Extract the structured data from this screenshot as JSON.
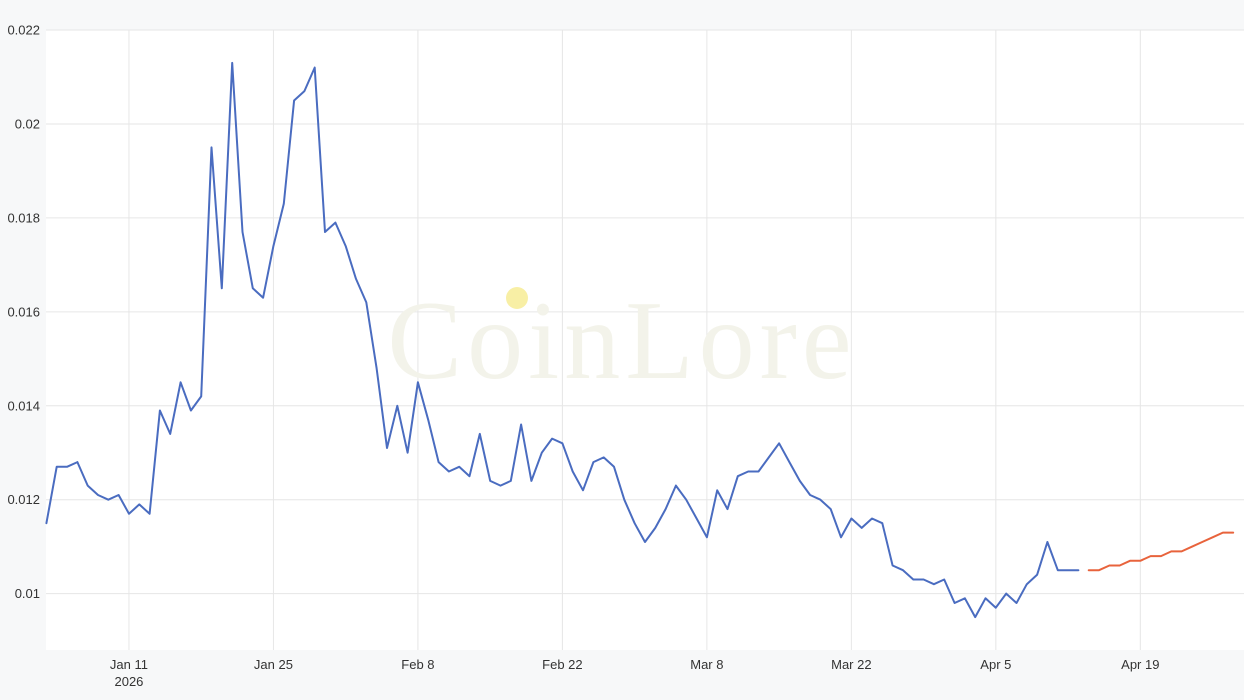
{
  "page": {
    "background_color": "#f7f8f9",
    "plot_background_color": "#ffffff",
    "axis_label_color": "#333333"
  },
  "watermark": {
    "text": "CoinLore",
    "dot_color": "#f8efa5"
  },
  "chart_data": {
    "type": "line",
    "grid": true,
    "grid_color": "#e6e6e6",
    "legend": "none",
    "x_axis": {
      "start_date": "2026-01-03",
      "tick_labels": [
        {
          "label": "Jan 11",
          "sublabel": "2026",
          "day_index": 8
        },
        {
          "label": "Jan 25",
          "sublabel": "",
          "day_index": 22
        },
        {
          "label": "Feb 8",
          "sublabel": "",
          "day_index": 36
        },
        {
          "label": "Feb 22",
          "sublabel": "",
          "day_index": 50
        },
        {
          "label": "Mar 8",
          "sublabel": "",
          "day_index": 64
        },
        {
          "label": "Mar 22",
          "sublabel": "",
          "day_index": 78
        },
        {
          "label": "Apr 5",
          "sublabel": "",
          "day_index": 92
        },
        {
          "label": "Apr 19",
          "sublabel": "",
          "day_index": 106
        }
      ]
    },
    "y_axis": {
      "ticks": [
        0.01,
        0.012,
        0.014,
        0.016,
        0.018,
        0.02,
        0.022
      ],
      "tick_labels": [
        "0.01",
        "0.012",
        "0.014",
        "0.016",
        "0.018",
        "0.02",
        "0.022"
      ],
      "range": [
        0.0088,
        0.022
      ]
    },
    "series": [
      {
        "name": "price-history",
        "color": "#4a6cc0",
        "start_day_index": 0,
        "start_date": "2026-01-03",
        "end_date": "2026-04-13",
        "values": [
          0.0115,
          0.0127,
          0.0127,
          0.0128,
          0.0123,
          0.0121,
          0.012,
          0.0121,
          0.0117,
          0.0119,
          0.0117,
          0.0139,
          0.0134,
          0.0145,
          0.0139,
          0.0142,
          0.0195,
          0.0165,
          0.0213,
          0.0177,
          0.0165,
          0.0163,
          0.0174,
          0.0183,
          0.0205,
          0.0207,
          0.0212,
          0.0177,
          0.0179,
          0.0174,
          0.0167,
          0.0162,
          0.0148,
          0.0131,
          0.014,
          0.013,
          0.0145,
          0.0137,
          0.0128,
          0.0126,
          0.0127,
          0.0125,
          0.0134,
          0.0124,
          0.0123,
          0.0124,
          0.0136,
          0.0124,
          0.013,
          0.0133,
          0.0132,
          0.0126,
          0.0122,
          0.0128,
          0.0129,
          0.0127,
          0.012,
          0.0115,
          0.0111,
          0.0114,
          0.0118,
          0.0123,
          0.012,
          0.0116,
          0.0112,
          0.0122,
          0.0118,
          0.0125,
          0.0126,
          0.0126,
          0.0129,
          0.0132,
          0.0128,
          0.0124,
          0.0121,
          0.012,
          0.0118,
          0.0112,
          0.0116,
          0.0114,
          0.0116,
          0.0115,
          0.0106,
          0.0105,
          0.0103,
          0.0103,
          0.0102,
          0.0103,
          0.0098,
          0.0099,
          0.0095,
          0.0099,
          0.0097,
          0.01,
          0.0098,
          0.0102,
          0.0104,
          0.0111,
          0.0105,
          0.0105,
          0.0105
        ]
      },
      {
        "name": "price-forecast",
        "color": "#e8633c",
        "start_day_index": 101,
        "start_date": "2026-04-14",
        "end_date": "2026-04-28",
        "values": [
          0.0105,
          0.0105,
          0.0106,
          0.0106,
          0.0107,
          0.0107,
          0.0108,
          0.0108,
          0.0109,
          0.0109,
          0.011,
          0.0111,
          0.0112,
          0.0113,
          0.0113
        ]
      }
    ]
  }
}
